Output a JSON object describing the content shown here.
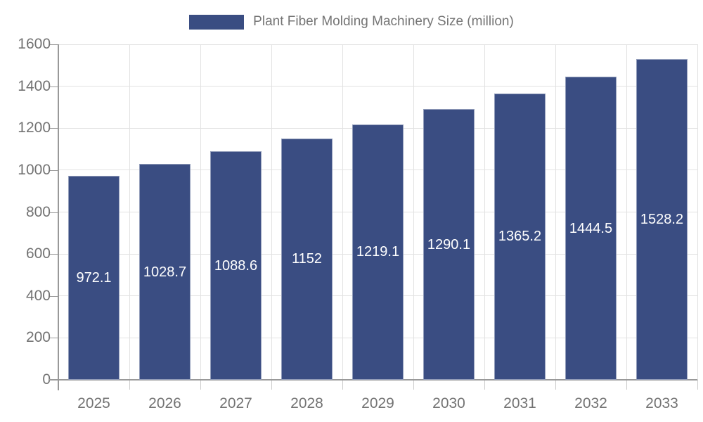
{
  "legend": {
    "label": "Plant Fiber Molding Machinery Size (million)"
  },
  "colors": {
    "bar": "#3a4d82",
    "bar_border": "rgba(255,255,255,0.45)",
    "grid": "#e2e2e2",
    "axis": "#999999",
    "xtick": "#cccccc",
    "axis_label_text": "#737373",
    "legend_text": "#757575",
    "bar_label_text": "#ffffff",
    "background": "#ffffff"
  },
  "chart_data": {
    "type": "bar",
    "title": "Plant Fiber Molding Machinery Size (million)",
    "series_name": "Plant Fiber Molding Machinery Size (million)",
    "categories": [
      "2025",
      "2026",
      "2027",
      "2028",
      "2029",
      "2030",
      "2031",
      "2032",
      "2033"
    ],
    "values": [
      972.1,
      1028.7,
      1088.6,
      1152,
      1219.1,
      1290.1,
      1365.2,
      1444.5,
      1528.2
    ],
    "value_labels": [
      "972.1",
      "1028.7",
      "1088.6",
      "1152",
      "1219.1",
      "1290.1",
      "1365.2",
      "1444.5",
      "1528.2"
    ],
    "xlabel": "",
    "ylabel": "",
    "ylim": [
      0,
      1600
    ],
    "yticks": [
      0,
      200,
      400,
      600,
      800,
      1000,
      1200,
      1400,
      1600
    ],
    "grid": true,
    "legend_position": "top",
    "value_label_position": "inside-center"
  }
}
